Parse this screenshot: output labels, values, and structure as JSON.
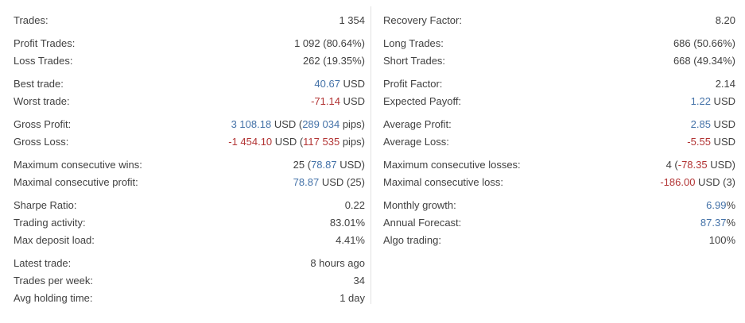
{
  "colors": {
    "background": "#ffffff",
    "text": "#414141",
    "positive_blue": "#4472a8",
    "negative_red": "#b23434",
    "divider": "#e2e2e2"
  },
  "left_column": {
    "groups": [
      [
        {
          "label": "Trades:",
          "segments": [
            {
              "text": "1 354"
            }
          ]
        }
      ],
      [
        {
          "label": "Profit Trades:",
          "segments": [
            {
              "text": "1 092 (80.64%)"
            }
          ]
        },
        {
          "label": "Loss Trades:",
          "segments": [
            {
              "text": "262 (19.35%)"
            }
          ]
        }
      ],
      [
        {
          "label": "Best trade:",
          "segments": [
            {
              "text": "40.67",
              "color": "blue"
            },
            {
              "text": " USD"
            }
          ]
        },
        {
          "label": "Worst trade:",
          "segments": [
            {
              "text": "-71.14",
              "color": "red"
            },
            {
              "text": " USD"
            }
          ]
        }
      ],
      [
        {
          "label": "Gross Profit:",
          "segments": [
            {
              "text": "3 108.18",
              "color": "blue"
            },
            {
              "text": " USD ("
            },
            {
              "text": "289 034",
              "color": "blue"
            },
            {
              "text": " pips)"
            }
          ]
        },
        {
          "label": "Gross Loss:",
          "segments": [
            {
              "text": "-1 454.10",
              "color": "red"
            },
            {
              "text": " USD ("
            },
            {
              "text": "117 535",
              "color": "red"
            },
            {
              "text": " pips)"
            }
          ]
        }
      ],
      [
        {
          "label": "Maximum consecutive wins:",
          "segments": [
            {
              "text": "25 ("
            },
            {
              "text": "78.87",
              "color": "blue"
            },
            {
              "text": " USD)"
            }
          ]
        },
        {
          "label": "Maximal consecutive profit:",
          "segments": [
            {
              "text": "78.87",
              "color": "blue"
            },
            {
              "text": " USD (25)"
            }
          ]
        }
      ],
      [
        {
          "label": "Sharpe Ratio:",
          "segments": [
            {
              "text": "0.22"
            }
          ]
        },
        {
          "label": "Trading activity:",
          "segments": [
            {
              "text": "83.01%"
            }
          ]
        },
        {
          "label": "Max deposit load:",
          "segments": [
            {
              "text": "4.41%"
            }
          ]
        }
      ],
      [
        {
          "label": "Latest trade:",
          "segments": [
            {
              "text": "8 hours ago"
            }
          ]
        },
        {
          "label": "Trades per week:",
          "segments": [
            {
              "text": "34"
            }
          ]
        },
        {
          "label": "Avg holding time:",
          "segments": [
            {
              "text": "1 day"
            }
          ]
        }
      ]
    ]
  },
  "right_column": {
    "groups": [
      [
        {
          "label": "Recovery Factor:",
          "segments": [
            {
              "text": "8.20"
            }
          ]
        }
      ],
      [
        {
          "label": "Long Trades:",
          "segments": [
            {
              "text": "686 (50.66%)"
            }
          ]
        },
        {
          "label": "Short Trades:",
          "segments": [
            {
              "text": "668 (49.34%)"
            }
          ]
        }
      ],
      [
        {
          "label": "Profit Factor:",
          "segments": [
            {
              "text": "2.14"
            }
          ]
        },
        {
          "label": "Expected Payoff:",
          "segments": [
            {
              "text": "1.22",
              "color": "blue"
            },
            {
              "text": " USD"
            }
          ]
        }
      ],
      [
        {
          "label": "Average Profit:",
          "segments": [
            {
              "text": "2.85",
              "color": "blue"
            },
            {
              "text": " USD"
            }
          ]
        },
        {
          "label": "Average Loss:",
          "segments": [
            {
              "text": "-5.55",
              "color": "red"
            },
            {
              "text": " USD"
            }
          ]
        }
      ],
      [
        {
          "label": "Maximum consecutive losses:",
          "segments": [
            {
              "text": "4 ("
            },
            {
              "text": "-78.35",
              "color": "red"
            },
            {
              "text": " USD)"
            }
          ]
        },
        {
          "label": "Maximal consecutive loss:",
          "segments": [
            {
              "text": "-186.00",
              "color": "red"
            },
            {
              "text": " USD (3)"
            }
          ]
        }
      ],
      [
        {
          "label": "Monthly growth:",
          "segments": [
            {
              "text": "6.99",
              "color": "blue"
            },
            {
              "text": "%"
            }
          ]
        },
        {
          "label": "Annual Forecast:",
          "segments": [
            {
              "text": "87.37",
              "color": "blue"
            },
            {
              "text": "%"
            }
          ]
        },
        {
          "label": "Algo trading:",
          "segments": [
            {
              "text": "100%"
            }
          ]
        }
      ]
    ]
  }
}
